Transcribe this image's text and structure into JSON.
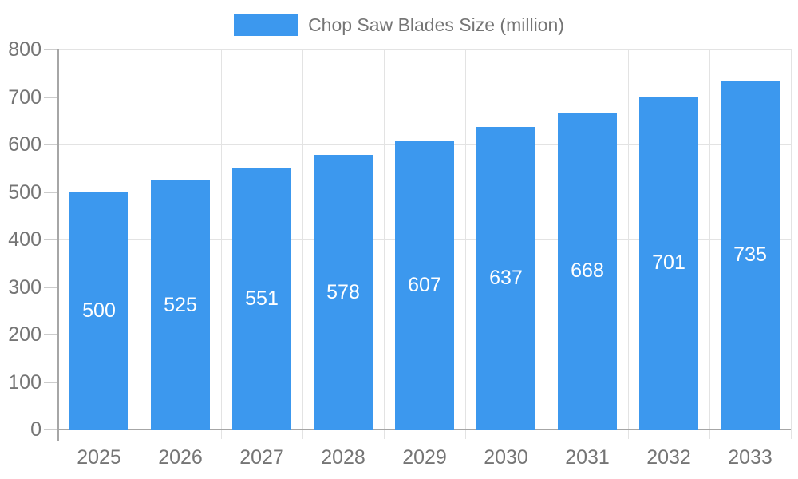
{
  "chart_data": {
    "type": "bar",
    "title": "Chop Saw Blades Size (million)",
    "legend": {
      "position": "top",
      "label": "Chop Saw Blades Size (million)"
    },
    "categories": [
      "2025",
      "2026",
      "2027",
      "2028",
      "2029",
      "2030",
      "2031",
      "2032",
      "2033"
    ],
    "values": [
      500,
      525,
      551,
      578,
      607,
      637,
      668,
      701,
      735
    ],
    "xlabel": "",
    "ylabel": "",
    "ylim": [
      0,
      800
    ],
    "ytick_interval": 100,
    "ytick_labels": [
      "0",
      "100",
      "200",
      "300",
      "400",
      "500",
      "600",
      "700",
      "800"
    ],
    "grid": {
      "horizontal": true,
      "vertical": true
    },
    "bar_value_label_position": "inside-middle",
    "colors": {
      "bar": "#3C98EE",
      "bar_label": "#ffffff",
      "axis": "#a6a6a6",
      "gridline": "#e3e3e3",
      "tick": "#cccccc",
      "text": "#757575"
    }
  }
}
